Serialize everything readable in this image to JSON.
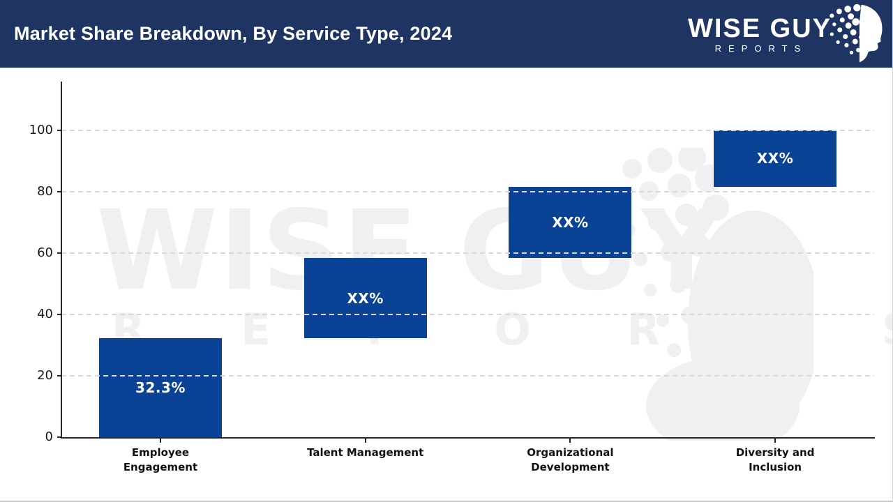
{
  "header": {
    "title": "Market Share Breakdown, By Service Type, 2024",
    "bg_color": "#1e3563",
    "logo": {
      "line1": "WISE GUY",
      "line2": "REPORTS",
      "icon": "face-profile-dots-icon"
    }
  },
  "watermark": {
    "line1": "WISE GUY",
    "line2": "R E P O R T S"
  },
  "chart_data": {
    "type": "bar",
    "subtype": "waterfall",
    "title": "Market Share Breakdown, By Service Type, 2024",
    "categories": [
      "Employee Engagement",
      "Talent Management",
      "Organizational Development",
      "Diversity and Inclusion"
    ],
    "category_lines": [
      [
        "Employee",
        "Engagement"
      ],
      [
        "Talent Management"
      ],
      [
        "Organizational",
        "Development"
      ],
      [
        "Diversity and",
        "Inclusion"
      ]
    ],
    "segments": [
      {
        "category": "Employee Engagement",
        "start": 0,
        "end": 32.3,
        "label": "32.3%"
      },
      {
        "category": "Talent Management",
        "start": 32.3,
        "end": 58.3,
        "label": "XX%"
      },
      {
        "category": "Organizational Development",
        "start": 58.3,
        "end": 81.7,
        "label": "XX%"
      },
      {
        "category": "Diversity and Inclusion",
        "start": 81.7,
        "end": 100,
        "label": "XX%"
      }
    ],
    "yticks": [
      0,
      20,
      40,
      60,
      80,
      100
    ],
    "ylim": [
      0,
      105
    ],
    "xlabel": "",
    "ylabel": "",
    "grid": "horizontal-dashed",
    "legend": "none",
    "bar_color": "#0a4396",
    "bar_label_color": "#ffffff",
    "axis_color": "#262626",
    "gridline_color": "#d8d8d8"
  }
}
